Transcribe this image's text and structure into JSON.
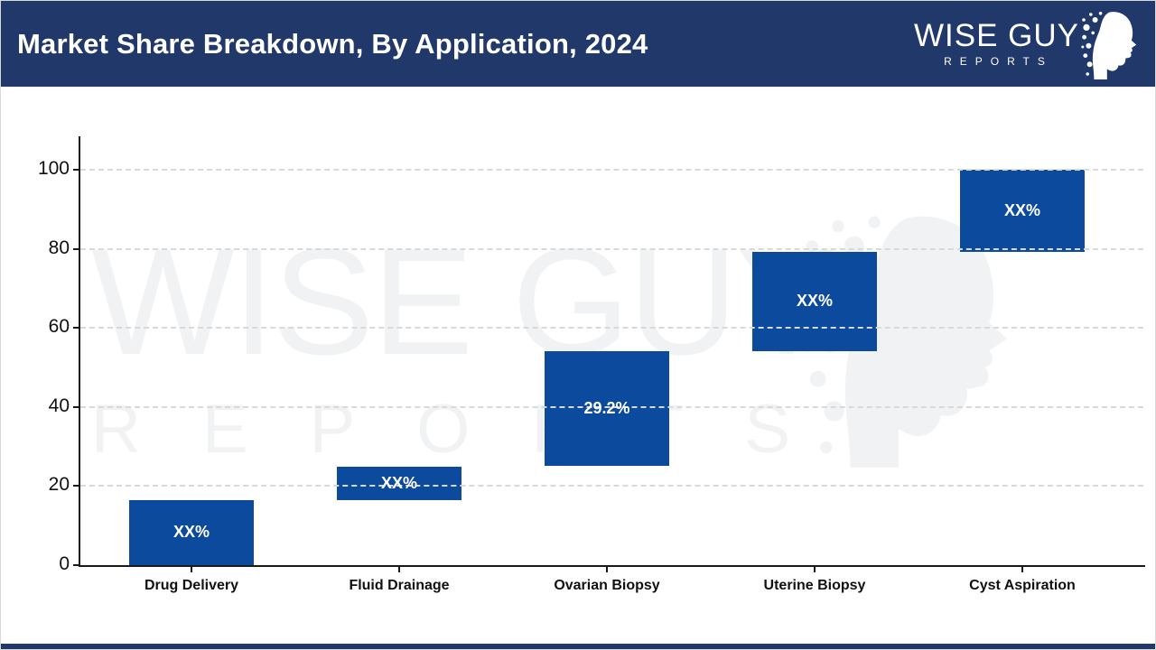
{
  "header": {
    "title": "Market Share Breakdown, By Application, 2024",
    "logo": {
      "name": "WISE GUY",
      "tagline": "REPORTS"
    }
  },
  "watermark": {
    "name": "WISE GUY",
    "tagline": "REPORTS"
  },
  "colors": {
    "header_bg": "#21386b",
    "bar": "#0c4a9e",
    "bar_label_text": "#ffffff",
    "gridline": "#d9d9d9",
    "axis": "#1a1a1a",
    "watermark": "#f1f2f4"
  },
  "chart_data": {
    "type": "bar",
    "subtype": "waterfall",
    "title": "Market Share Breakdown, By Application, 2024",
    "categories": [
      "Drug Delivery",
      "Fluid Drainage",
      "Ovarian Biopsy",
      "Uterine Biopsy",
      "Cyst Aspiration"
    ],
    "segments": [
      {
        "category": "Drug Delivery",
        "start": 0,
        "end": 16.5,
        "label": "XX%"
      },
      {
        "category": "Fluid Drainage",
        "start": 16.5,
        "end": 25,
        "label": "XX%"
      },
      {
        "category": "Ovarian Biopsy",
        "start": 25,
        "end": 54.2,
        "label": "29.2%"
      },
      {
        "category": "Uterine Biopsy",
        "start": 54.2,
        "end": 79.2,
        "label": "XX%"
      },
      {
        "category": "Cyst Aspiration",
        "start": 79.2,
        "end": 100,
        "label": "XX%"
      }
    ],
    "ylim": [
      0,
      100
    ],
    "yticks": [
      0,
      20,
      40,
      60,
      80,
      100
    ],
    "xlabel": "",
    "ylabel": "",
    "grid": "horizontal-dashed",
    "legend": "none"
  }
}
